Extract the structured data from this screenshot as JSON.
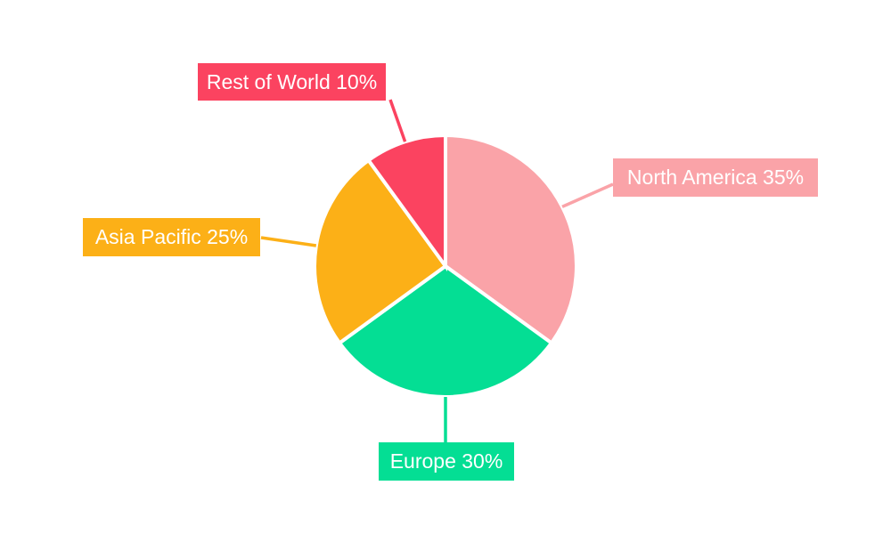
{
  "chart_data": {
    "type": "pie",
    "direction": "clockwise",
    "start_angle_deg": -90,
    "background": "#FFFFFF",
    "label_text_color": "#FFFFFF",
    "legend_position": "callout-labels",
    "slices": [
      {
        "label": "North America",
        "value": 35,
        "display": "North America 35%",
        "color": "#FAA3A8"
      },
      {
        "label": "Europe",
        "value": 30,
        "display": "Europe 30%",
        "color": "#04DE94"
      },
      {
        "label": "Asia Pacific",
        "value": 25,
        "display": "Asia Pacific 25%",
        "color": "#FCB017"
      },
      {
        "label": "Rest of World",
        "value": 10,
        "display": "Rest of World 10%",
        "color": "#FB4360"
      }
    ]
  }
}
